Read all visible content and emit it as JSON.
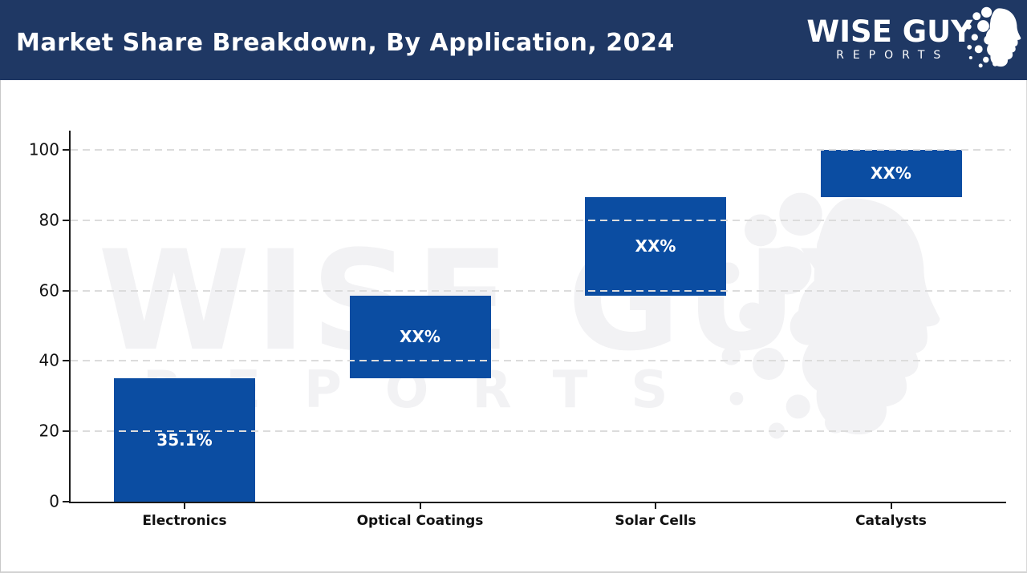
{
  "header": {
    "title": "Market Share Breakdown, By Application, 2024",
    "logo": {
      "line1": "WISE GUY",
      "line2": "REPORTS"
    }
  },
  "watermark": {
    "line1": "WISE GUY",
    "line2": "REPORTS"
  },
  "theme": {
    "header_bg": "#1f3864",
    "bar_color": "#0b4da2",
    "grid_color": "#dcdcdc",
    "axis_color": "#1a1a1a",
    "watermark_color": "#f2f2f4",
    "title_color": "#ffffff",
    "bar_label_color": "#ffffff"
  },
  "chart_data": {
    "type": "bar",
    "subtype": "waterfall",
    "title": "Market Share Breakdown, By Application, 2024",
    "categories": [
      "Electronics",
      "Optical Coatings",
      "Solar Cells",
      "Catalysts"
    ],
    "bars": [
      {
        "category": "Electronics",
        "start": 0,
        "end": 35.1,
        "label": "35.1%"
      },
      {
        "category": "Optical Coatings",
        "start": 35.1,
        "end": 58.6,
        "label": "XX%"
      },
      {
        "category": "Solar Cells",
        "start": 58.6,
        "end": 86.6,
        "label": "XX%"
      },
      {
        "category": "Catalysts",
        "start": 86.6,
        "end": 100,
        "label": "XX%"
      }
    ],
    "yticks": [
      0,
      20,
      40,
      60,
      80,
      100
    ],
    "ylim": [
      0,
      100
    ],
    "xlabel": "",
    "ylabel": "",
    "grid": "horizontal-dashed",
    "legend": "none"
  }
}
